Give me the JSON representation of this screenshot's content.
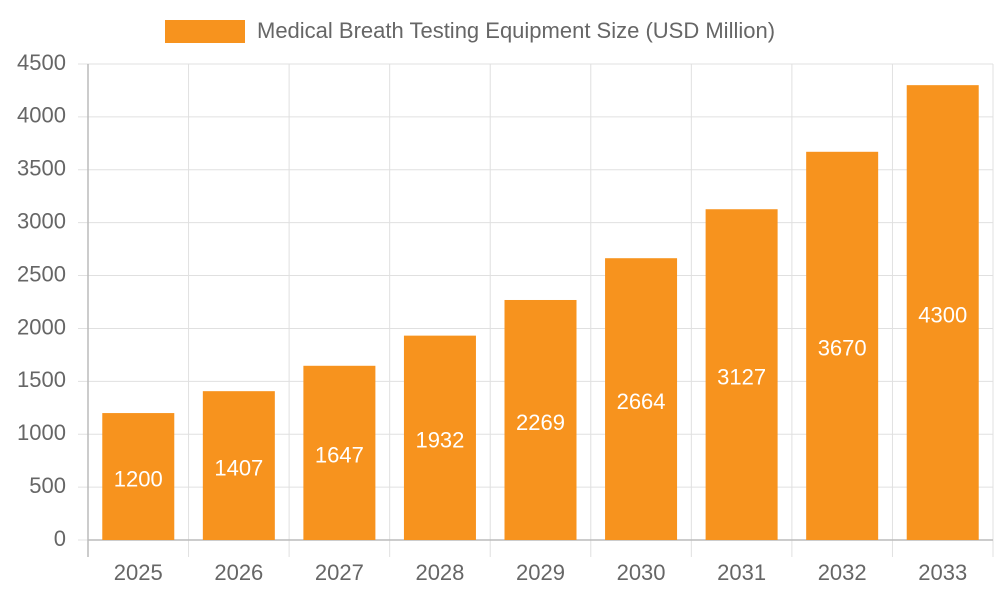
{
  "chart_data": {
    "type": "bar",
    "categories": [
      "2025",
      "2026",
      "2027",
      "2028",
      "2029",
      "2030",
      "2031",
      "2032",
      "2033"
    ],
    "series": [
      {
        "name": "Medical Breath Testing Equipment Size (USD Million)",
        "color": "#f7931e",
        "values": [
          1200,
          1407,
          1647,
          1932,
          2269,
          2664,
          3127,
          3670,
          4300
        ]
      }
    ],
    "ylim": [
      0,
      4500
    ],
    "yticks": [
      0,
      500,
      1000,
      1500,
      2000,
      2500,
      3000,
      3500,
      4000,
      4500
    ],
    "grid": true,
    "legend": "top"
  }
}
